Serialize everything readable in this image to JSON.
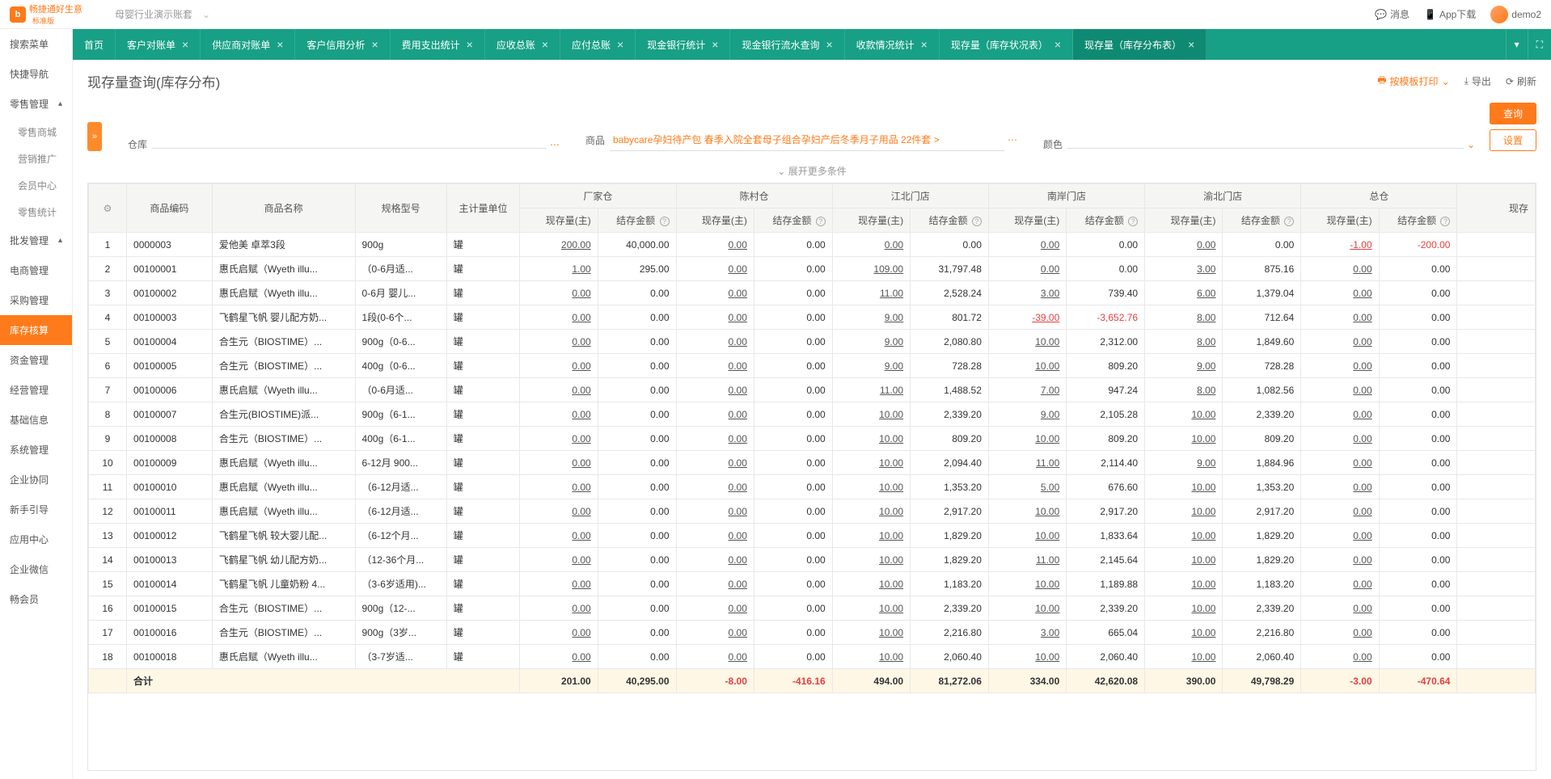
{
  "brand": {
    "name": "畅捷通好生意",
    "edition": "标准版"
  },
  "top": {
    "demoTitle": "母婴行业演示账套",
    "msg": "消息",
    "download": "App下载",
    "user": "demo2"
  },
  "sidebar": {
    "items": [
      {
        "label": "搜索菜单"
      },
      {
        "label": "快捷导航"
      },
      {
        "label": "零售管理",
        "arrow": true,
        "subs": [
          "零售商城",
          "营销推广",
          "会员中心",
          "零售统计"
        ]
      },
      {
        "label": "批发管理",
        "arrow": true
      },
      {
        "label": "电商管理"
      },
      {
        "label": "采购管理"
      },
      {
        "label": "库存核算",
        "active": true
      },
      {
        "label": "资金管理"
      },
      {
        "label": "经营管理"
      },
      {
        "label": "基础信息"
      },
      {
        "label": "系统管理"
      },
      {
        "label": "企业协同"
      },
      {
        "label": "新手引导"
      },
      {
        "label": "应用中心"
      },
      {
        "label": "企业微信"
      },
      {
        "label": "畅会员"
      }
    ]
  },
  "tabs": [
    {
      "label": "首页"
    },
    {
      "label": "客户对账单",
      "close": true
    },
    {
      "label": "供应商对账单",
      "close": true
    },
    {
      "label": "客户信用分析",
      "close": true
    },
    {
      "label": "费用支出统计",
      "close": true
    },
    {
      "label": "应收总账",
      "close": true
    },
    {
      "label": "应付总账",
      "close": true
    },
    {
      "label": "现金银行统计",
      "close": true
    },
    {
      "label": "现金银行流水查询",
      "close": true
    },
    {
      "label": "收款情况统计",
      "close": true
    },
    {
      "label": "现存量（库存状况表）",
      "close": true
    },
    {
      "label": "现存量（库存分布表）",
      "close": true,
      "active": true
    }
  ],
  "page": {
    "title": "现存量查询(库存分布)",
    "print": "按模板打印",
    "export": "导出",
    "refresh": "刷新",
    "filters": {
      "warehouse": "仓库",
      "product": "商品",
      "color": "颜色",
      "productValue": "babycare孕妇待产包 春季入院全套母子组合孕妇产后冬季月子用品 22件套 >"
    },
    "btnQuery": "查询",
    "btnSetting": "设置",
    "expand": "展开更多条件"
  },
  "table": {
    "fixedHeaders": [
      "",
      "商品编码",
      "商品名称",
      "规格型号",
      "主计量单位"
    ],
    "groups": [
      "厂家仓",
      "陈村仓",
      "江北门店",
      "南岸门店",
      "渝北门店",
      "总仓"
    ],
    "subHeaders": [
      "现存量(主)",
      "结存金额"
    ],
    "extra": "现存",
    "rows": [
      {
        "i": 1,
        "code": "0000003",
        "name": "爱他美 卓萃3段",
        "spec": "900g",
        "unit": "罐",
        "v": [
          [
            "200.00",
            "40,000.00"
          ],
          [
            "0.00",
            "0.00"
          ],
          [
            "0.00",
            "0.00"
          ],
          [
            "0.00",
            "0.00"
          ],
          [
            "0.00",
            "0.00"
          ],
          [
            "-1.00",
            "-200.00"
          ]
        ]
      },
      {
        "i": 2,
        "code": "00100001",
        "name": "惠氏启赋（Wyeth illu...",
        "spec": "（0-6月适...",
        "unit": "罐",
        "v": [
          [
            "1.00",
            "295.00"
          ],
          [
            "0.00",
            "0.00"
          ],
          [
            "109.00",
            "31,797.48"
          ],
          [
            "0.00",
            "0.00"
          ],
          [
            "3.00",
            "875.16"
          ],
          [
            "0.00",
            "0.00"
          ]
        ]
      },
      {
        "i": 3,
        "code": "00100002",
        "name": "惠氏启赋（Wyeth illu...",
        "spec": "0-6月 婴儿...",
        "unit": "罐",
        "v": [
          [
            "0.00",
            "0.00"
          ],
          [
            "0.00",
            "0.00"
          ],
          [
            "11.00",
            "2,528.24"
          ],
          [
            "3.00",
            "739.40"
          ],
          [
            "6.00",
            "1,379.04"
          ],
          [
            "0.00",
            "0.00"
          ]
        ]
      },
      {
        "i": 4,
        "code": "00100003",
        "name": "飞鹤星飞帆 婴儿配方奶...",
        "spec": "1段(0-6个...",
        "unit": "罐",
        "v": [
          [
            "0.00",
            "0.00"
          ],
          [
            "0.00",
            "0.00"
          ],
          [
            "9.00",
            "801.72"
          ],
          [
            "-39.00",
            "-3,652.76"
          ],
          [
            "8.00",
            "712.64"
          ],
          [
            "0.00",
            "0.00"
          ]
        ]
      },
      {
        "i": 5,
        "code": "00100004",
        "name": "合生元（BIOSTIME）...",
        "spec": "900g（0-6...",
        "unit": "罐",
        "v": [
          [
            "0.00",
            "0.00"
          ],
          [
            "0.00",
            "0.00"
          ],
          [
            "9.00",
            "2,080.80"
          ],
          [
            "10.00",
            "2,312.00"
          ],
          [
            "8.00",
            "1,849.60"
          ],
          [
            "0.00",
            "0.00"
          ]
        ]
      },
      {
        "i": 6,
        "code": "00100005",
        "name": "合生元（BIOSTIME）...",
        "spec": "400g（0-6...",
        "unit": "罐",
        "v": [
          [
            "0.00",
            "0.00"
          ],
          [
            "0.00",
            "0.00"
          ],
          [
            "9.00",
            "728.28"
          ],
          [
            "10.00",
            "809.20"
          ],
          [
            "9.00",
            "728.28"
          ],
          [
            "0.00",
            "0.00"
          ]
        ]
      },
      {
        "i": 7,
        "code": "00100006",
        "name": "惠氏启赋（Wyeth illu...",
        "spec": "（0-6月适...",
        "unit": "罐",
        "v": [
          [
            "0.00",
            "0.00"
          ],
          [
            "0.00",
            "0.00"
          ],
          [
            "11.00",
            "1,488.52"
          ],
          [
            "7.00",
            "947.24"
          ],
          [
            "8.00",
            "1,082.56"
          ],
          [
            "0.00",
            "0.00"
          ]
        ]
      },
      {
        "i": 8,
        "code": "00100007",
        "name": "合生元(BIOSTIME)派...",
        "spec": "900g（6-1...",
        "unit": "罐",
        "v": [
          [
            "0.00",
            "0.00"
          ],
          [
            "0.00",
            "0.00"
          ],
          [
            "10.00",
            "2,339.20"
          ],
          [
            "9.00",
            "2,105.28"
          ],
          [
            "10.00",
            "2,339.20"
          ],
          [
            "0.00",
            "0.00"
          ]
        ]
      },
      {
        "i": 9,
        "code": "00100008",
        "name": "合生元（BIOSTIME）...",
        "spec": "400g（6-1...",
        "unit": "罐",
        "v": [
          [
            "0.00",
            "0.00"
          ],
          [
            "0.00",
            "0.00"
          ],
          [
            "10.00",
            "809.20"
          ],
          [
            "10.00",
            "809.20"
          ],
          [
            "10.00",
            "809.20"
          ],
          [
            "0.00",
            "0.00"
          ]
        ]
      },
      {
        "i": 10,
        "code": "00100009",
        "name": "惠氏启赋（Wyeth illu...",
        "spec": "6-12月 900...",
        "unit": "罐",
        "v": [
          [
            "0.00",
            "0.00"
          ],
          [
            "0.00",
            "0.00"
          ],
          [
            "10.00",
            "2,094.40"
          ],
          [
            "11.00",
            "2,114.40"
          ],
          [
            "9.00",
            "1,884.96"
          ],
          [
            "0.00",
            "0.00"
          ]
        ]
      },
      {
        "i": 11,
        "code": "00100010",
        "name": "惠氏启赋（Wyeth illu...",
        "spec": "（6-12月适...",
        "unit": "罐",
        "v": [
          [
            "0.00",
            "0.00"
          ],
          [
            "0.00",
            "0.00"
          ],
          [
            "10.00",
            "1,353.20"
          ],
          [
            "5.00",
            "676.60"
          ],
          [
            "10.00",
            "1,353.20"
          ],
          [
            "0.00",
            "0.00"
          ]
        ]
      },
      {
        "i": 12,
        "code": "00100011",
        "name": "惠氏启赋（Wyeth illu...",
        "spec": "（6-12月适...",
        "unit": "罐",
        "v": [
          [
            "0.00",
            "0.00"
          ],
          [
            "0.00",
            "0.00"
          ],
          [
            "10.00",
            "2,917.20"
          ],
          [
            "10.00",
            "2,917.20"
          ],
          [
            "10.00",
            "2,917.20"
          ],
          [
            "0.00",
            "0.00"
          ]
        ]
      },
      {
        "i": 13,
        "code": "00100012",
        "name": "飞鹤星飞帆 较大婴儿配...",
        "spec": "（6-12个月...",
        "unit": "罐",
        "v": [
          [
            "0.00",
            "0.00"
          ],
          [
            "0.00",
            "0.00"
          ],
          [
            "10.00",
            "1,829.20"
          ],
          [
            "10.00",
            "1,833.64"
          ],
          [
            "10.00",
            "1,829.20"
          ],
          [
            "0.00",
            "0.00"
          ]
        ]
      },
      {
        "i": 14,
        "code": "00100013",
        "name": "飞鹤星飞帆 幼儿配方奶...",
        "spec": "（12-36个月...",
        "unit": "罐",
        "v": [
          [
            "0.00",
            "0.00"
          ],
          [
            "0.00",
            "0.00"
          ],
          [
            "10.00",
            "1,829.20"
          ],
          [
            "11.00",
            "2,145.64"
          ],
          [
            "10.00",
            "1,829.20"
          ],
          [
            "0.00",
            "0.00"
          ]
        ]
      },
      {
        "i": 15,
        "code": "00100014",
        "name": "飞鹤星飞帆 儿童奶粉 4...",
        "spec": "（3-6岁适用)...",
        "unit": "罐",
        "v": [
          [
            "0.00",
            "0.00"
          ],
          [
            "0.00",
            "0.00"
          ],
          [
            "10.00",
            "1,183.20"
          ],
          [
            "10.00",
            "1,189.88"
          ],
          [
            "10.00",
            "1,183.20"
          ],
          [
            "0.00",
            "0.00"
          ]
        ]
      },
      {
        "i": 16,
        "code": "00100015",
        "name": "合生元（BIOSTIME）...",
        "spec": "900g（12-...",
        "unit": "罐",
        "v": [
          [
            "0.00",
            "0.00"
          ],
          [
            "0.00",
            "0.00"
          ],
          [
            "10.00",
            "2,339.20"
          ],
          [
            "10.00",
            "2,339.20"
          ],
          [
            "10.00",
            "2,339.20"
          ],
          [
            "0.00",
            "0.00"
          ]
        ]
      },
      {
        "i": 17,
        "code": "00100016",
        "name": "合生元（BIOSTIME）...",
        "spec": "900g（3岁...",
        "unit": "罐",
        "v": [
          [
            "0.00",
            "0.00"
          ],
          [
            "0.00",
            "0.00"
          ],
          [
            "10.00",
            "2,216.80"
          ],
          [
            "3.00",
            "665.04"
          ],
          [
            "10.00",
            "2,216.80"
          ],
          [
            "0.00",
            "0.00"
          ]
        ]
      },
      {
        "i": 18,
        "code": "00100018",
        "name": "惠氏启赋（Wyeth illu...",
        "spec": "（3-7岁适...",
        "unit": "罐",
        "v": [
          [
            "0.00",
            "0.00"
          ],
          [
            "0.00",
            "0.00"
          ],
          [
            "10.00",
            "2,060.40"
          ],
          [
            "10.00",
            "2,060.40"
          ],
          [
            "10.00",
            "2,060.40"
          ],
          [
            "0.00",
            "0.00"
          ]
        ]
      }
    ],
    "total": {
      "label": "合计",
      "v": [
        [
          "201.00",
          "40,295.00"
        ],
        [
          "-8.00",
          "-416.16"
        ],
        [
          "494.00",
          "81,272.06"
        ],
        [
          "334.00",
          "42,620.08"
        ],
        [
          "390.00",
          "49,798.29"
        ],
        [
          "-3.00",
          "-470.64"
        ]
      ]
    }
  }
}
